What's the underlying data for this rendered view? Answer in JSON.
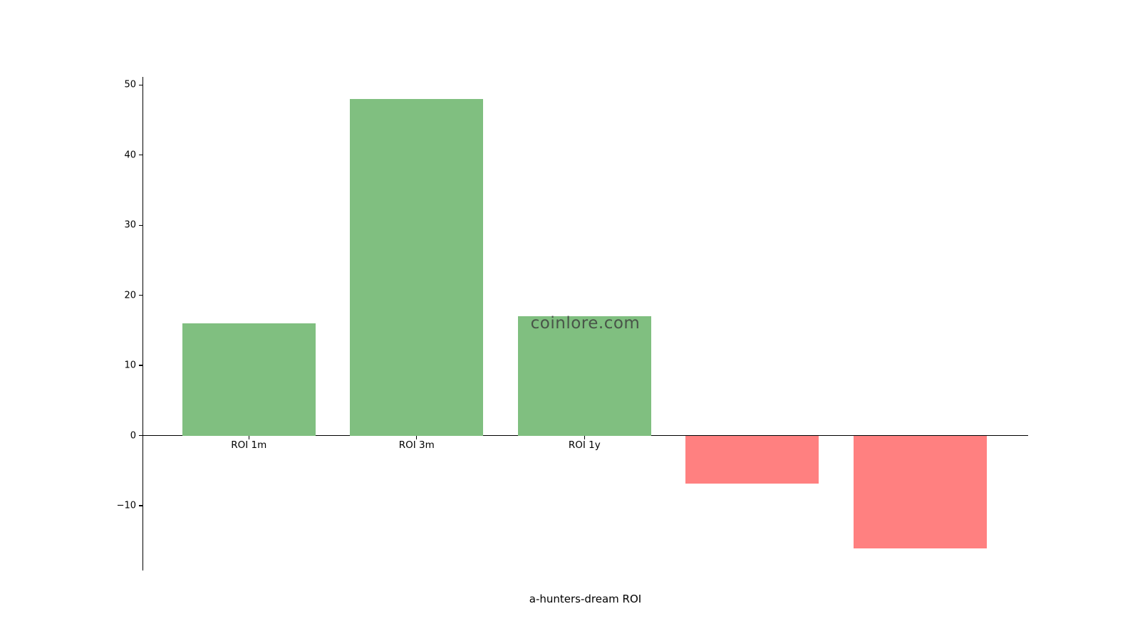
{
  "page": {
    "background_color": "#ffffff",
    "axis_color": "#000000",
    "text_color": "#000000"
  },
  "watermark": {
    "text": "coinlore.com",
    "color": "#3a3a3a"
  },
  "chart_data": {
    "type": "bar",
    "title": "a-hunters-dream ROI",
    "xlabel": "",
    "ylabel": "",
    "categories": [
      "ROI 1m",
      "ROI 3m",
      "ROI 1y",
      "",
      ""
    ],
    "values": [
      16,
      48,
      17,
      -6.8,
      -16
    ],
    "positive_color": "#80BF80",
    "negative_color": "#FF8080",
    "y_ticks": [
      50,
      40,
      30,
      20,
      10,
      0,
      -10
    ],
    "ylim": [
      -19.2,
      51.2
    ],
    "grid": false,
    "legend": "none",
    "baseline": 0
  }
}
